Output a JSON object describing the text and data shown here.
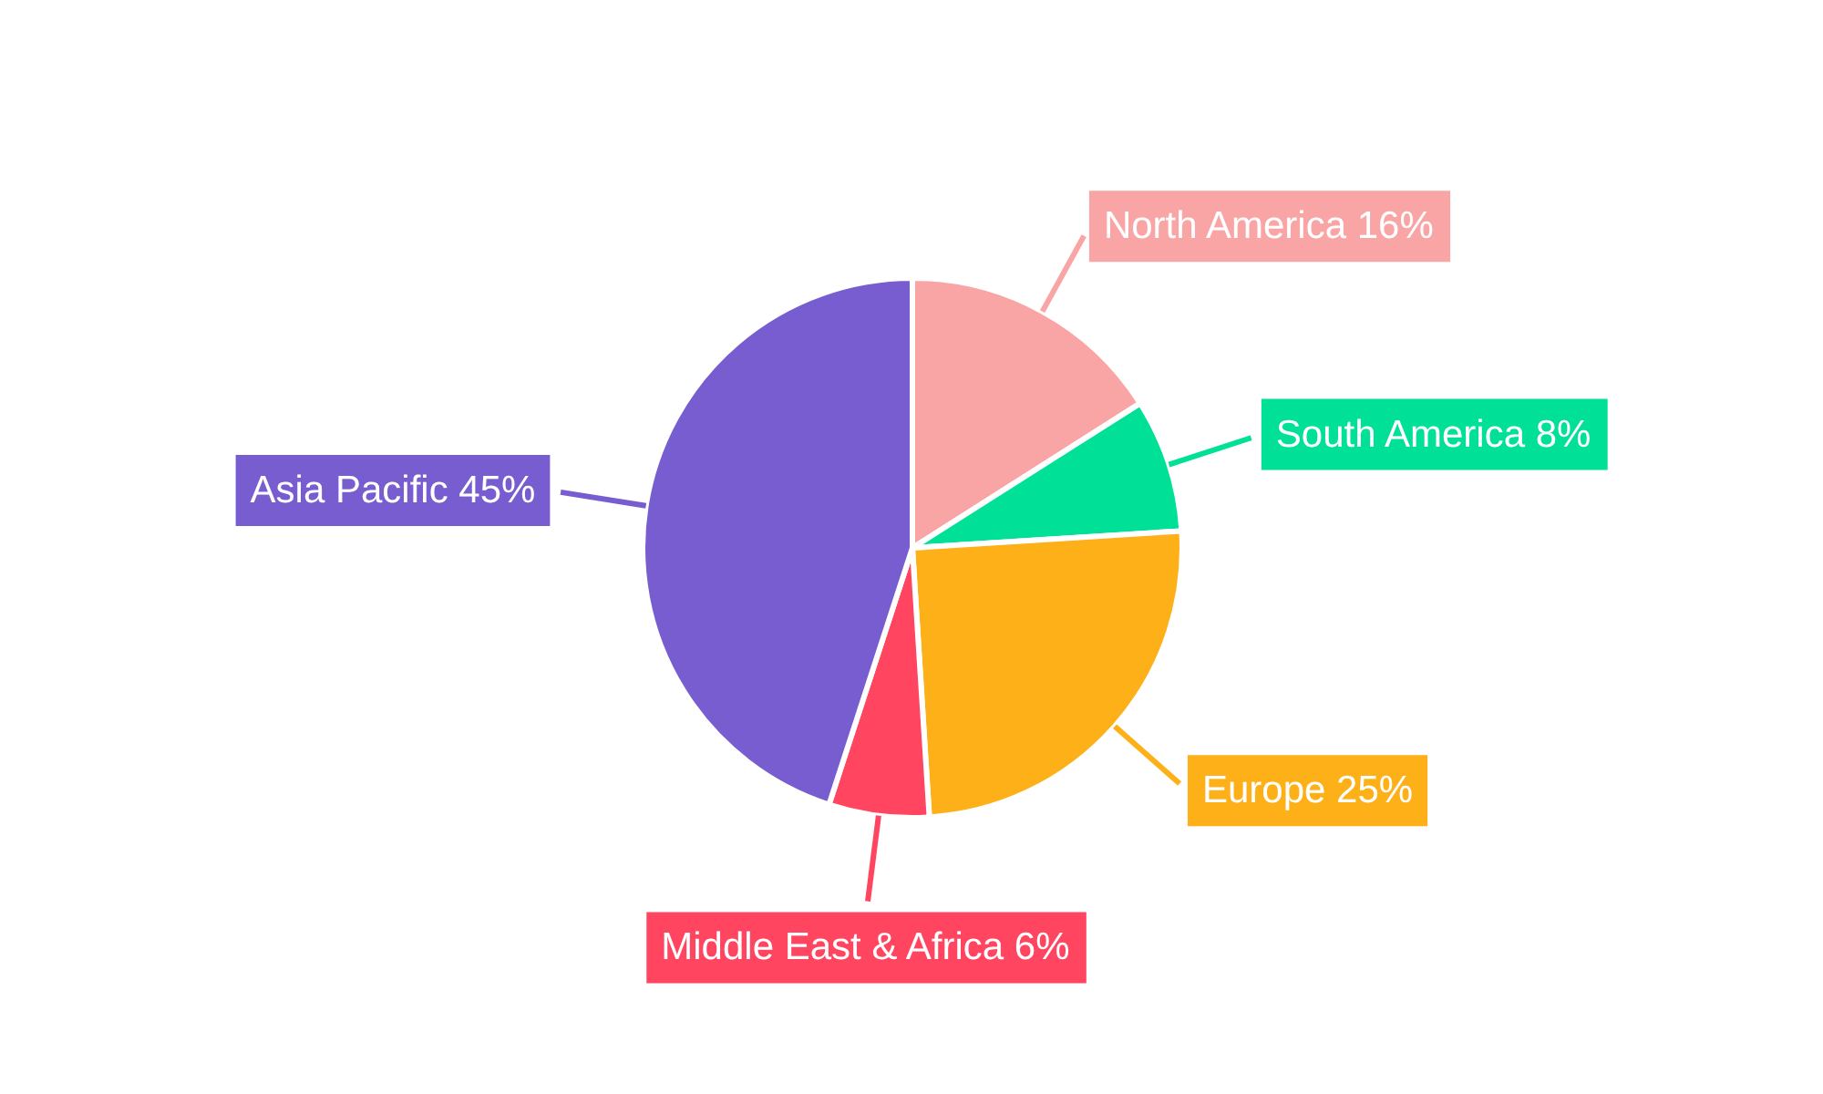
{
  "chart_data": {
    "type": "pie",
    "categories": [
      "North America",
      "South America",
      "Europe",
      "Middle East & Africa",
      "Asia Pacific"
    ],
    "values": [
      16,
      8,
      25,
      6,
      45
    ],
    "colors": [
      "#f9a5a5",
      "#00e096",
      "#feb019",
      "#ff4560",
      "#775dd0"
    ],
    "value_labels": [
      "16%",
      "8%",
      "25%",
      "6%",
      "45%"
    ]
  }
}
